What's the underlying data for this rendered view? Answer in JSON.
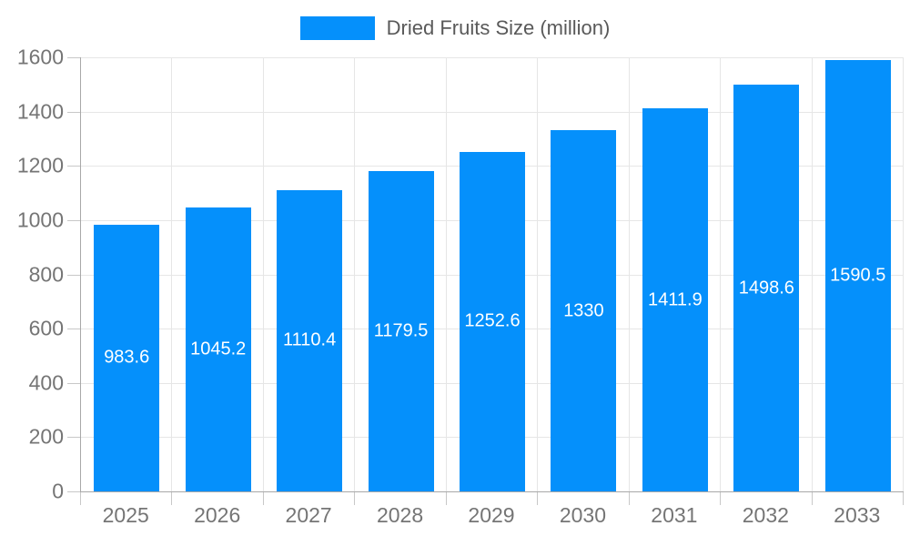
{
  "legend": {
    "label": "Dried Fruits Size (million)"
  },
  "chart_data": {
    "type": "bar",
    "title": "",
    "xlabel": "",
    "ylabel": "",
    "categories": [
      "2025",
      "2026",
      "2027",
      "2028",
      "2029",
      "2030",
      "2031",
      "2032",
      "2033"
    ],
    "series": [
      {
        "name": "Dried Fruits Size (million)",
        "values": [
          983.6,
          1045.2,
          1110.4,
          1179.5,
          1252.6,
          1330,
          1411.9,
          1498.6,
          1590.5
        ],
        "value_labels": [
          "983.6",
          "1045.2",
          "1110.4",
          "1179.5",
          "1252.6",
          "1330",
          "1411.9",
          "1498.6",
          "1590.5"
        ]
      }
    ],
    "ylim": [
      0,
      1600
    ],
    "y_ticks": [
      0,
      200,
      400,
      600,
      800,
      1000,
      1200,
      1400,
      1600
    ],
    "grid": true,
    "vertical_grid": true,
    "legend_position": "top-center",
    "value_label_position": "inside-center"
  },
  "colors": {
    "bar": "#0590fb",
    "bar_value_label": "#ffffff",
    "gridline": "#e6e6e6",
    "axis_line": "#a8a8a8",
    "tick_mark": "#c8c8c8",
    "axis_text": "#757575",
    "legend_text": "#595959",
    "background": "#ffffff"
  }
}
